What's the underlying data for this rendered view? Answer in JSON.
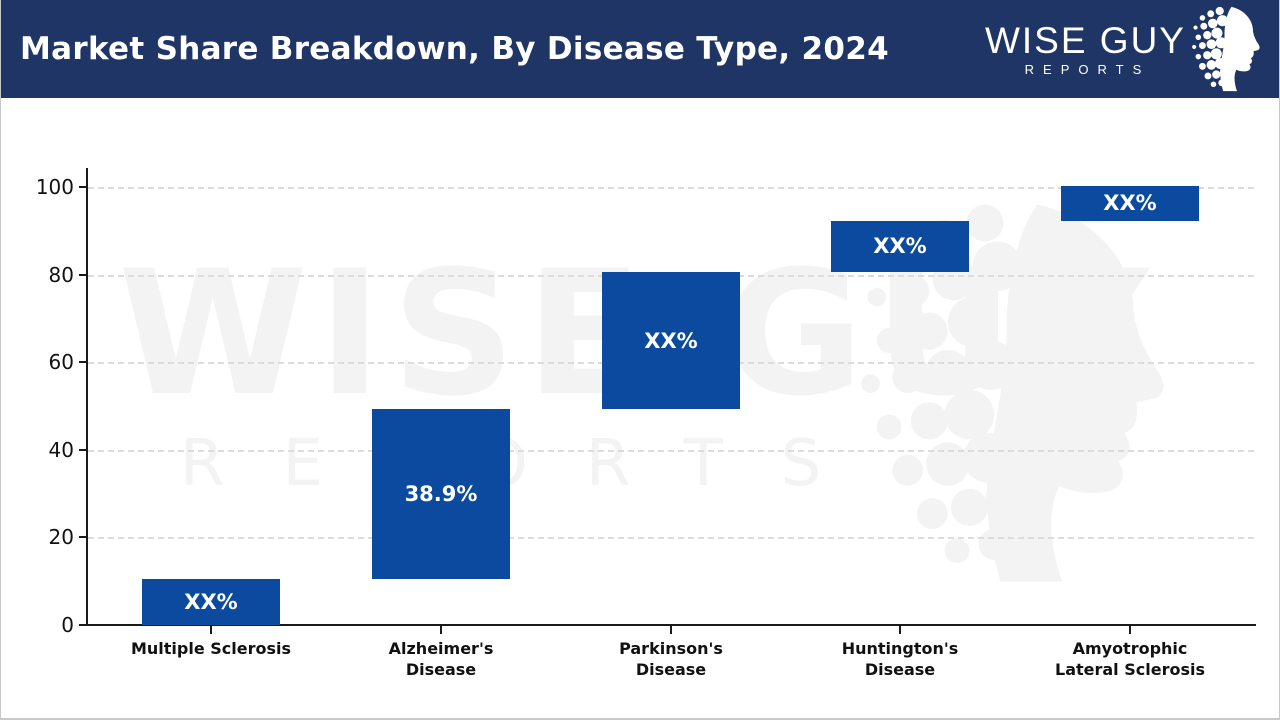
{
  "header": {
    "title": "Market Share Breakdown, By Disease Type, 2024",
    "brand": {
      "wordmark": "WISE GUY",
      "sub": "REPORTS"
    }
  },
  "watermark": {
    "line1": "WISE GUY",
    "line2": "REPORTS"
  },
  "colors": {
    "header_bg": "#1f3565",
    "bar": "#0b4a9f",
    "grid": "#dcdcdc",
    "axis": "#1a1a1a",
    "border": "#c8c8c8",
    "watermark": "#f3f3f3",
    "bar_label_text": "#ffffff",
    "title_text": "#ffffff"
  },
  "chart_data": {
    "type": "bar",
    "subtype": "waterfall",
    "title": "Market Share Breakdown, By Disease Type, 2024",
    "xlabel": "",
    "ylabel": "",
    "ylim": [
      0,
      104
    ],
    "yticks": [
      0,
      20,
      40,
      60,
      80,
      100
    ],
    "grid": "horizontal-dashed",
    "legend": "none",
    "categories": [
      "Multiple Sclerosis",
      "Alzheimer's\nDisease",
      "Parkinson's\nDisease",
      "Huntington's\nDisease",
      "Amyotrophic\nLateral Sclerosis"
    ],
    "segments": [
      {
        "category": "Multiple Sclerosis",
        "start": 0,
        "end": 10.4,
        "value": 10.4,
        "label": "XX%"
      },
      {
        "category": "Alzheimer's Disease",
        "start": 10.4,
        "end": 49.3,
        "value": 38.9,
        "label": "38.9%"
      },
      {
        "category": "Parkinson's Disease",
        "start": 49.3,
        "end": 80.5,
        "value": 31.2,
        "label": "XX%"
      },
      {
        "category": "Huntington's Disease",
        "start": 80.5,
        "end": 92.3,
        "value": 11.8,
        "label": "XX%"
      },
      {
        "category": "Amyotrophic Lateral Sclerosis",
        "start": 92.3,
        "end": 100.3,
        "value": 8.0,
        "label": "XX%"
      }
    ]
  }
}
